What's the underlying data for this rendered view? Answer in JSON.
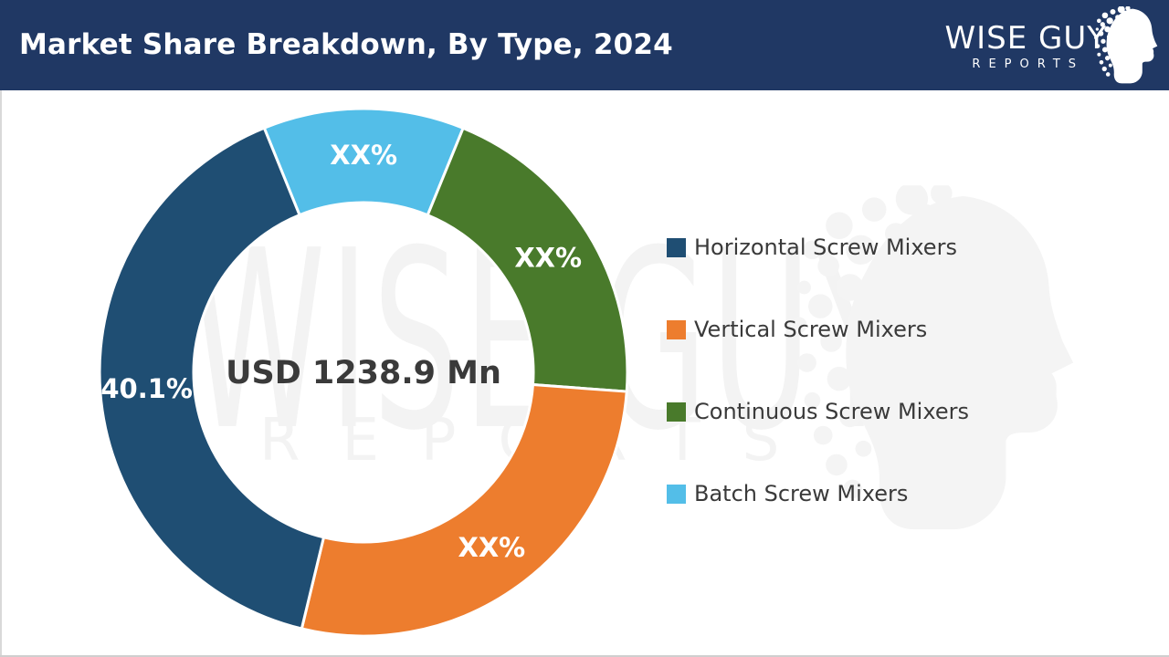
{
  "header": {
    "title": "Market Share Breakdown, By Type, 2024",
    "logo": {
      "line1": "WISE GUY",
      "line2": "REPORTS"
    }
  },
  "watermark": {
    "line1": "WISE GUY",
    "line2": "REPORTS"
  },
  "chart_data": {
    "type": "donut",
    "title": "Market Share Breakdown, By Type, 2024",
    "center_label": "USD 1238.9 Mn",
    "start_angle_deg": -22.1,
    "direction": "clockwise",
    "segments": [
      {
        "label": "Batch Screw Mixers",
        "display_label": "XX%",
        "value_pct": 12.3,
        "color": "#53BEE8"
      },
      {
        "label": "Continuous Screw Mixers",
        "display_label": "XX%",
        "value_pct": 20.0,
        "color": "#497A2B"
      },
      {
        "label": "Vertical Screw Mixers",
        "display_label": "XX%",
        "value_pct": 27.6,
        "color": "#ED7D2E"
      },
      {
        "label": "Horizontal Screw Mixers",
        "display_label": "40.1%",
        "value_pct": 40.1,
        "color": "#1F4E73"
      }
    ]
  },
  "legend": {
    "items": [
      {
        "label": "Horizontal Screw Mixers",
        "color": "#1F4E73"
      },
      {
        "label": "Vertical Screw Mixers",
        "color": "#ED7D2E"
      },
      {
        "label": "Continuous Screw Mixers",
        "color": "#497A2B"
      },
      {
        "label": "Batch Screw Mixers",
        "color": "#53BEE8"
      }
    ]
  },
  "colors": {
    "header_bg": "#203864",
    "text_dark": "#3A3A3A",
    "watermark": "#F3F3F3",
    "divider": "#CFCFCF"
  }
}
